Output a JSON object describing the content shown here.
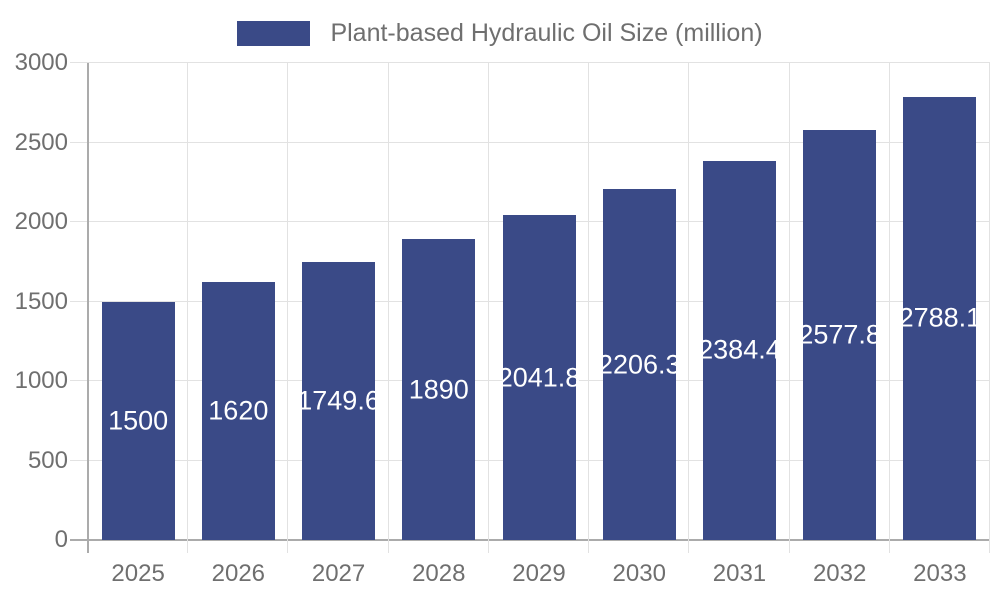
{
  "legend": {
    "label": "Plant-based Hydraulic Oil Size (million)"
  },
  "colors": {
    "bar": "#3A4A87",
    "grid": "#E2E2E2",
    "axis": "#ABABAB",
    "tick_text": "#6F6F6F",
    "legend_text": "#6F6F6F",
    "bar_label": "#FFFFFF",
    "background": "#FFFFFF"
  },
  "chart_data": {
    "type": "bar",
    "title": "",
    "xlabel": "",
    "ylabel": "",
    "categories": [
      "2025",
      "2026",
      "2027",
      "2028",
      "2029",
      "2030",
      "2031",
      "2032",
      "2033"
    ],
    "series": [
      {
        "name": "Plant-based Hydraulic Oil Size (million)",
        "values": [
          1500,
          1620,
          1749.6,
          1890,
          2041.8,
          2206.3,
          2384.4,
          2577.8,
          2788.1
        ]
      }
    ],
    "value_labels": [
      "1500",
      "1620",
      "1749.6",
      "1890",
      "2041.8",
      "2206.3",
      "2384.4",
      "2577.8",
      "2788.1"
    ],
    "ylim": [
      0,
      3000
    ],
    "yticks": [
      0,
      500,
      1000,
      1500,
      2000,
      2500,
      3000
    ],
    "grid": true,
    "legend_position": "top",
    "value_labels_position": "inside-center"
  }
}
